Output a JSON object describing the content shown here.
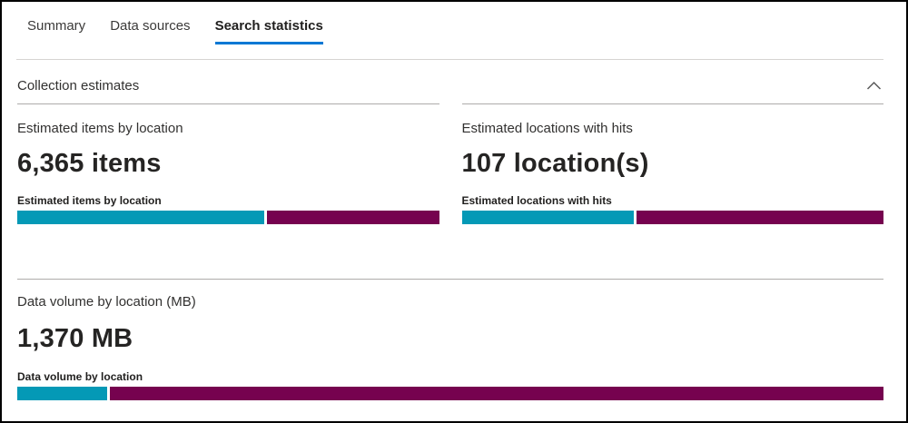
{
  "tabs": [
    {
      "label": "Summary",
      "active": false
    },
    {
      "label": "Data sources",
      "active": false
    },
    {
      "label": "Search statistics",
      "active": true
    }
  ],
  "section": {
    "title": "Collection estimates",
    "chevron_icon": "chevron-up-icon",
    "state": "expanded"
  },
  "colors": {
    "teal": "#0499B6",
    "purple": "#76024F",
    "tab_accent": "#0078D4"
  },
  "panels": [
    {
      "header": "Estimated items by location",
      "value_text": "6,365 items",
      "value": 6365,
      "unit": "items",
      "bar_label": "Estimated items by location",
      "segments": [
        {
          "name": "teal",
          "percent": 58.6
        },
        {
          "name": "purple",
          "percent": 41.4
        }
      ]
    },
    {
      "header": "Estimated locations with hits",
      "value_text": "107 location(s)",
      "value": 107,
      "unit": "location(s)",
      "bar_label": "Estimated locations with hits",
      "segments": [
        {
          "name": "teal",
          "percent": 40.9
        },
        {
          "name": "purple",
          "percent": 59.1
        }
      ]
    },
    {
      "header": "Data volume by location (MB)",
      "value_text": "1,370 MB",
      "value": 1370,
      "unit": "MB",
      "bar_label": "Data volume by location",
      "segments": [
        {
          "name": "teal",
          "percent": 10.4
        },
        {
          "name": "purple",
          "percent": 89.6
        }
      ]
    }
  ],
  "chart_data": [
    {
      "type": "bar",
      "title": "Estimated items by location",
      "total_label": "6,365 items",
      "total": 6365,
      "series": [
        {
          "name": "segment-1",
          "percent": 58.6,
          "color": "#0499B6"
        },
        {
          "name": "segment-2",
          "percent": 41.4,
          "color": "#76024F"
        }
      ]
    },
    {
      "type": "bar",
      "title": "Estimated locations with hits",
      "total_label": "107 location(s)",
      "total": 107,
      "series": [
        {
          "name": "segment-1",
          "percent": 40.9,
          "color": "#0499B6"
        },
        {
          "name": "segment-2",
          "percent": 59.1,
          "color": "#76024F"
        }
      ]
    },
    {
      "type": "bar",
      "title": "Data volume by location (MB)",
      "total_label": "1,370 MB",
      "total": 1370,
      "series": [
        {
          "name": "segment-1",
          "percent": 10.4,
          "color": "#0499B6"
        },
        {
          "name": "segment-2",
          "percent": 89.6,
          "color": "#76024F"
        }
      ]
    }
  ]
}
